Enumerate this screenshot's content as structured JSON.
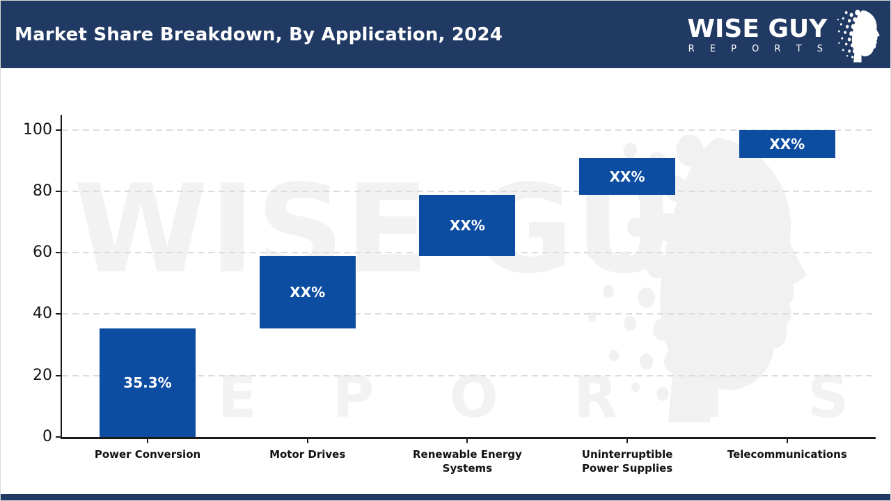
{
  "header": {
    "title": "Market Share Breakdown, By Application, 2024",
    "brand": {
      "name_line": "WISE GUY",
      "reports_line": "R E P O R T S"
    }
  },
  "watermark": {
    "name_line": "WISE GUY",
    "reports_line": "R E P O R T S"
  },
  "colors": {
    "header_bg": "#213a64",
    "footer_bg": "#213a64",
    "bar_fill": "#0d4da1",
    "bar_label": "#ffffff",
    "grid_line": "#dcdcdc",
    "axis_line": "#1a1a1a",
    "tick_label": "#111111",
    "title_text": "#ffffff",
    "watermark": "#f2f2f2"
  },
  "chart_data": {
    "type": "bar",
    "subtype": "waterfall",
    "title": "Market Share Breakdown, By Application, 2024",
    "xlabel": "",
    "ylabel": "",
    "ylim": [
      0,
      105
    ],
    "y_ticks": [
      0,
      20,
      40,
      60,
      80,
      100
    ],
    "grid": "horizontal-dashed",
    "legend": "none",
    "categories": [
      {
        "label_lines": [
          "Power Conversion"
        ]
      },
      {
        "label_lines": [
          "Motor Drives"
        ]
      },
      {
        "label_lines": [
          "Renewable Energy",
          "Systems"
        ]
      },
      {
        "label_lines": [
          "Uninterruptible",
          "Power Supplies"
        ]
      },
      {
        "label_lines": [
          "Telecommunications"
        ]
      }
    ],
    "segments": [
      {
        "category": "Power Conversion",
        "start": 0,
        "end": 35.3,
        "value_label": "35.3%"
      },
      {
        "category": "Motor Drives",
        "start": 35.3,
        "end": 58.8,
        "value_label": "XX%"
      },
      {
        "category": "Renewable Energy Systems",
        "start": 58.8,
        "end": 78.8,
        "value_label": "XX%"
      },
      {
        "category": "Uninterruptible Power Supplies",
        "start": 78.8,
        "end": 90.8,
        "value_label": "XX%"
      },
      {
        "category": "Telecommunications",
        "start": 90.8,
        "end": 100,
        "value_label": "XX%"
      }
    ]
  }
}
